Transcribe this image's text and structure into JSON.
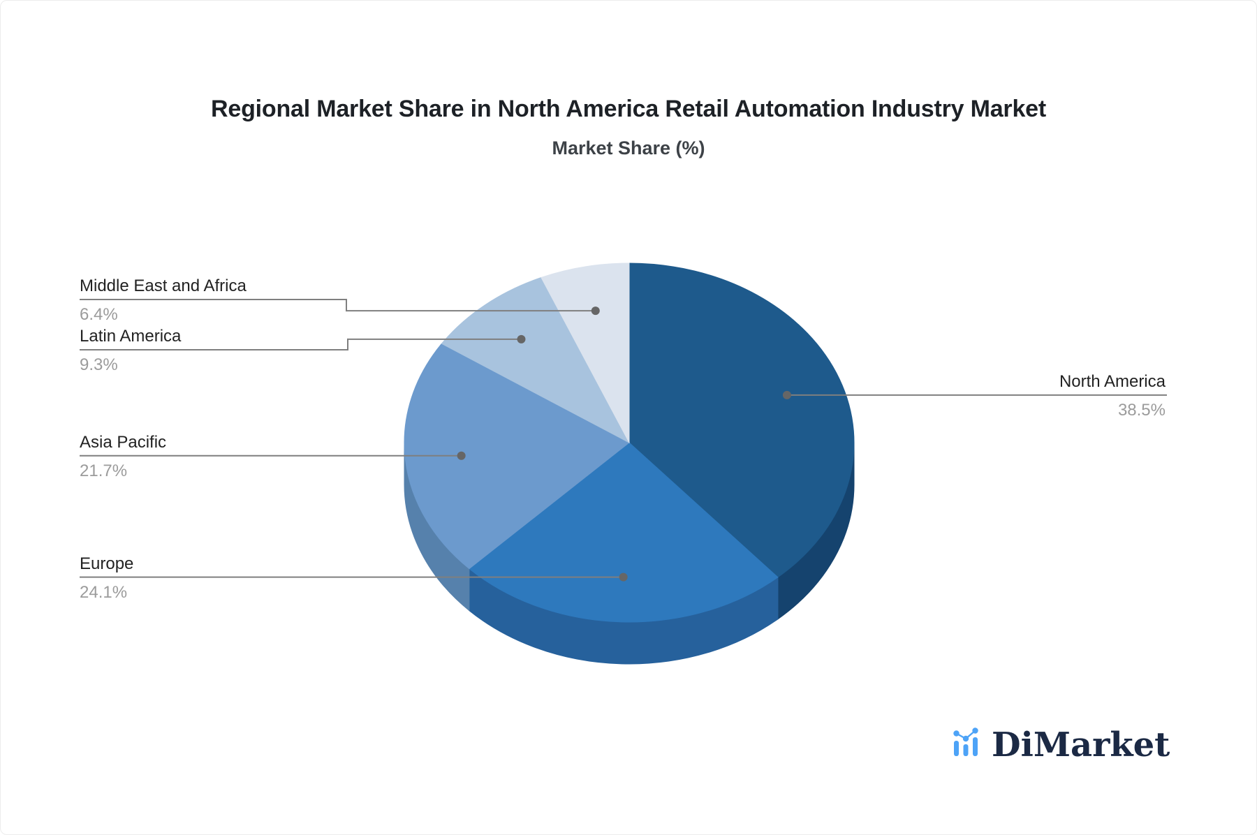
{
  "header": {
    "title": "Regional Market Share in North America Retail Automation Industry Market",
    "subtitle": "Market Share (%)"
  },
  "chart_data": {
    "type": "pie",
    "style": "3d",
    "title": "Regional Market Share in North America Retail Automation Industry Market",
    "subtitle": "Market Share (%)",
    "unit": "%",
    "start_angle": "12-oclock",
    "direction": "clockwise",
    "slices": [
      {
        "label": "North America",
        "value": 38.5,
        "pct_label": "38.5%",
        "color": "#1E5A8C",
        "side_color": "#15436E",
        "label_side": "right"
      },
      {
        "label": "Europe",
        "value": 24.1,
        "pct_label": "24.1%",
        "color": "#2E79BD",
        "side_color": "#26619C",
        "label_side": "left"
      },
      {
        "label": "Asia Pacific",
        "value": 21.7,
        "pct_label": "21.7%",
        "color": "#6C9ACD",
        "side_color": "#5681AC",
        "label_side": "left"
      },
      {
        "label": "Latin America",
        "value": 9.3,
        "pct_label": "9.3%",
        "color": "#A8C3DE",
        "side_color": "#87A9C8",
        "label_side": "left"
      },
      {
        "label": "Middle East and Africa",
        "value": 6.4,
        "pct_label": "6.4%",
        "color": "#DBE3EE",
        "side_color": "#B9C7DA",
        "label_side": "left"
      }
    ],
    "leader_line_color": "#7f7f7f",
    "dot_color": "#666666",
    "label_color": "#222222",
    "pct_color": "#9b9b9b",
    "legend": "none",
    "grid": "off"
  },
  "branding": {
    "logo_text": "DiMarket",
    "logo_color": "#1b2944",
    "logo_icon": "bar-line-chart-icon",
    "logo_accent": "#4DA3F7"
  }
}
